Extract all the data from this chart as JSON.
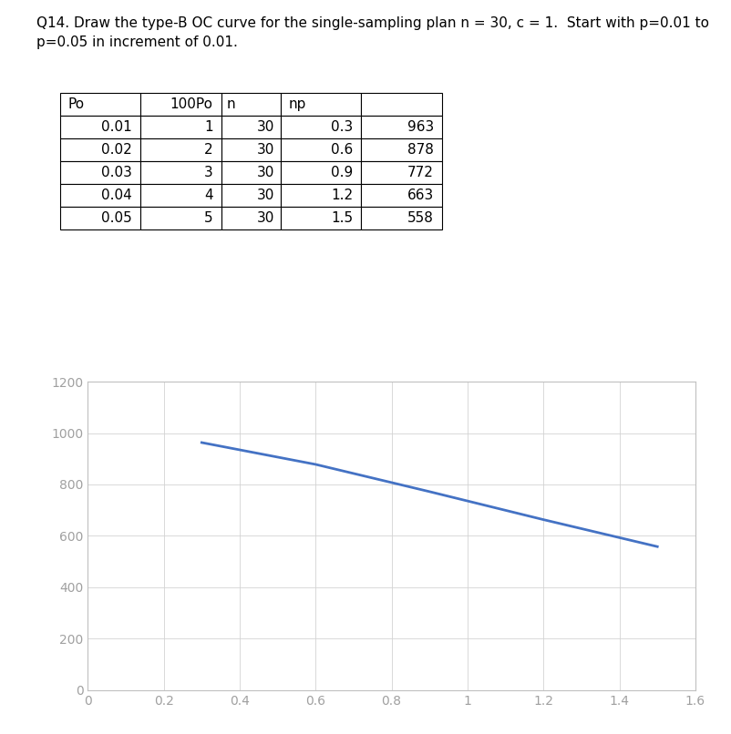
{
  "title_line1": "Q14. Draw the type-B OC curve for the single-sampling plan n = 30, c = 1.  Start with p=0.01 to",
  "title_line2": "p=0.05 in increment of 0.01.",
  "table": {
    "headers": [
      "Po",
      "100Po",
      "n",
      "np",
      ""
    ],
    "col_align": [
      "right",
      "right",
      "right",
      "right",
      "right"
    ],
    "rows": [
      [
        "0.01",
        "1",
        "30",
        "0.3",
        "963"
      ],
      [
        "0.02",
        "2",
        "30",
        "0.6",
        "878"
      ],
      [
        "0.03",
        "3",
        "30",
        "0.9",
        "772"
      ],
      [
        "0.04",
        "4",
        "30",
        "1.2",
        "663"
      ],
      [
        "0.05",
        "5",
        "30",
        "1.5",
        "558"
      ]
    ]
  },
  "plot": {
    "x": [
      0.3,
      0.6,
      0.9,
      1.2,
      1.5
    ],
    "y": [
      963,
      878,
      772,
      663,
      558
    ],
    "xlim": [
      0,
      1.6
    ],
    "ylim": [
      0,
      1200
    ],
    "xticks": [
      0,
      0.2,
      0.4,
      0.6,
      0.8,
      1.0,
      1.2,
      1.4,
      1.6
    ],
    "xticklabels": [
      "0",
      "0.2",
      "0.4",
      "0.6",
      "0.8",
      "1",
      "1.2",
      "1.4",
      "1.6"
    ],
    "yticks": [
      0,
      200,
      400,
      600,
      800,
      1000,
      1200
    ],
    "line_color": "#4472C4",
    "line_width": 2.0,
    "grid_color": "#D3D3D3",
    "tick_color": "#A0A0A0",
    "spine_color": "#C0C0C0"
  },
  "title_fontsize": 11,
  "table_fontsize": 11
}
